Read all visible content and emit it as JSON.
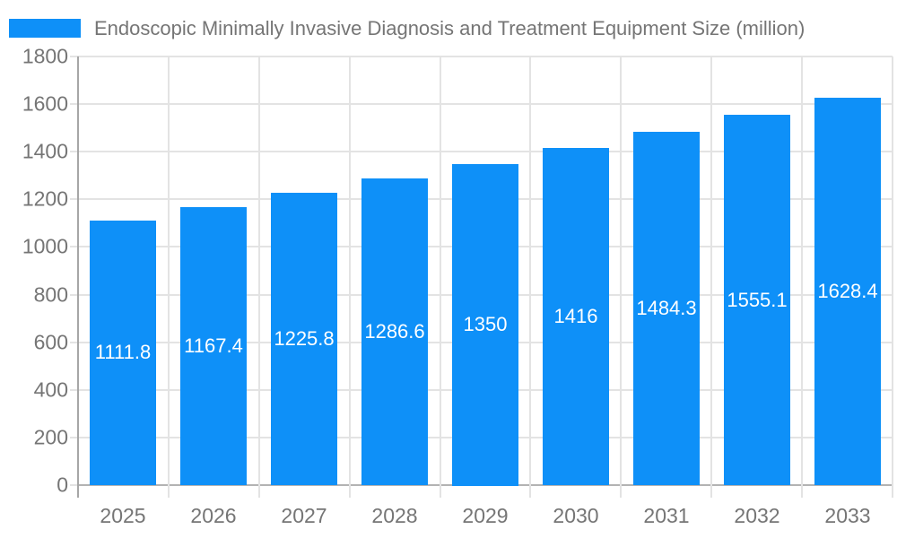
{
  "chart_data": {
    "type": "bar",
    "title": "Endoscopic Minimally Invasive Diagnosis and Treatment Equipment Size (million)",
    "categories": [
      "2025",
      "2026",
      "2027",
      "2028",
      "2029",
      "2030",
      "2031",
      "2032",
      "2033"
    ],
    "values": [
      1111.8,
      1167.4,
      1225.8,
      1286.6,
      1350,
      1416,
      1484.3,
      1555.1,
      1628.4
    ],
    "value_labels": [
      "1111.8",
      "1167.4",
      "1225.8",
      "1286.6",
      "1350",
      "1416",
      "1484.3",
      "1555.1",
      "1628.4"
    ],
    "xlabel": "",
    "ylabel": "",
    "ylim": [
      0,
      1800
    ],
    "y_ticks": [
      0,
      200,
      400,
      600,
      800,
      1000,
      1200,
      1400,
      1600,
      1800
    ],
    "grid": true,
    "legend_position": "top-left",
    "colors": {
      "bar": "#0E90F8",
      "gridline": "#e3e3e3",
      "y_axis_line": "#a6a6a6",
      "baseline": "#b3b3b3",
      "axis_text": "#757575",
      "bar_label_text": "#ffffff",
      "background": "#ffffff"
    }
  }
}
